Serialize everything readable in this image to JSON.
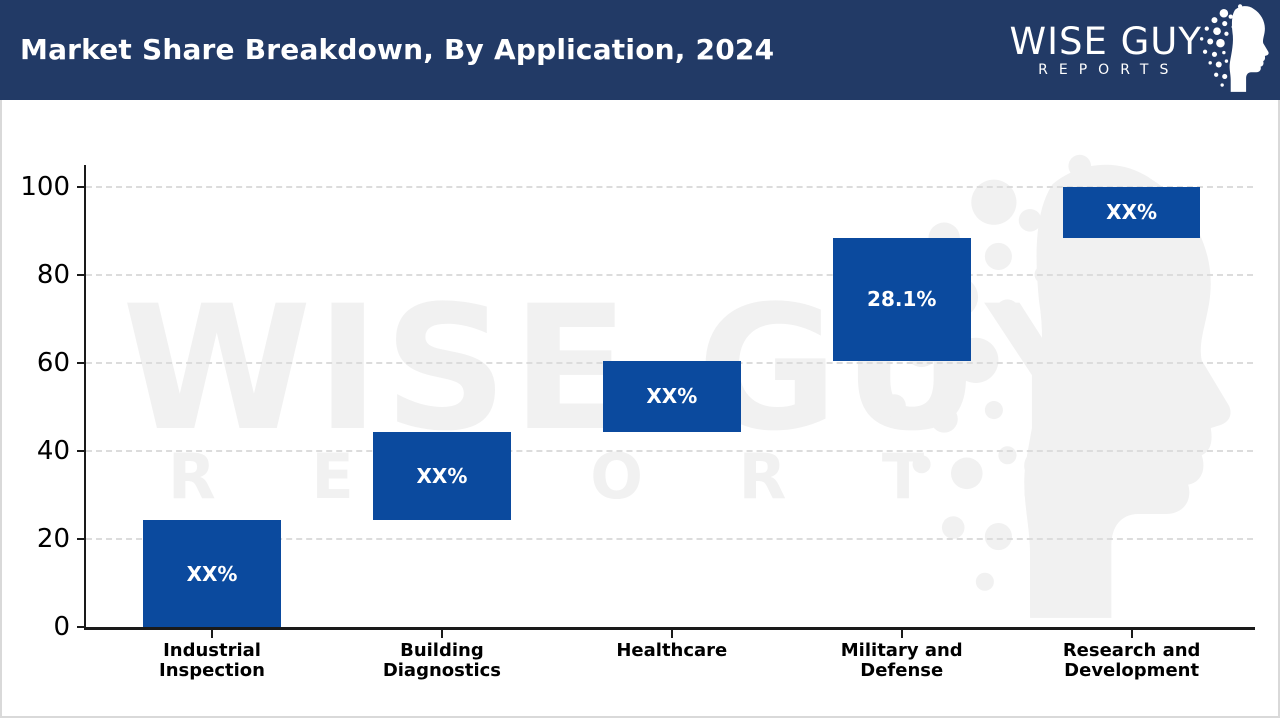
{
  "header": {
    "title": "Market Share Breakdown, By Application, 2024",
    "logo": {
      "line1": "WISE GUY",
      "line2": "REPORTS"
    }
  },
  "watermark": {
    "line1": "WISE GUY",
    "line2": "R E P O R T S"
  },
  "colors": {
    "header_bg": "#223a66",
    "bar": "#0b4a9e",
    "bar_label": "#ffffff",
    "grid": "#dcdcdc",
    "axis": "#1a1a1a",
    "watermark": "#f1f1f1",
    "frame": "#d9d9d9"
  },
  "chart_data": {
    "type": "bar",
    "variant": "waterfall",
    "title": "Market Share Breakdown, By Application, 2024",
    "categories": [
      [
        "Industrial",
        "Inspection"
      ],
      [
        "Building",
        "Diagnostics"
      ],
      [
        "Healthcare"
      ],
      [
        "Military and",
        "Defense"
      ],
      [
        "Research and",
        "Development"
      ]
    ],
    "bars": [
      {
        "start": 0,
        "end": 24.3,
        "label": "XX%"
      },
      {
        "start": 24.3,
        "end": 44.4,
        "label": "XX%"
      },
      {
        "start": 44.4,
        "end": 60.4,
        "label": "XX%"
      },
      {
        "start": 60.4,
        "end": 88.5,
        "label": "28.1%"
      },
      {
        "start": 88.5,
        "end": 100,
        "label": "XX%"
      }
    ],
    "xlabel": "",
    "ylabel": "",
    "ylim": [
      0,
      105
    ],
    "yticks": [
      0,
      20,
      40,
      60,
      80,
      100
    ],
    "grid": "dashed horizontal",
    "legend": "none"
  }
}
